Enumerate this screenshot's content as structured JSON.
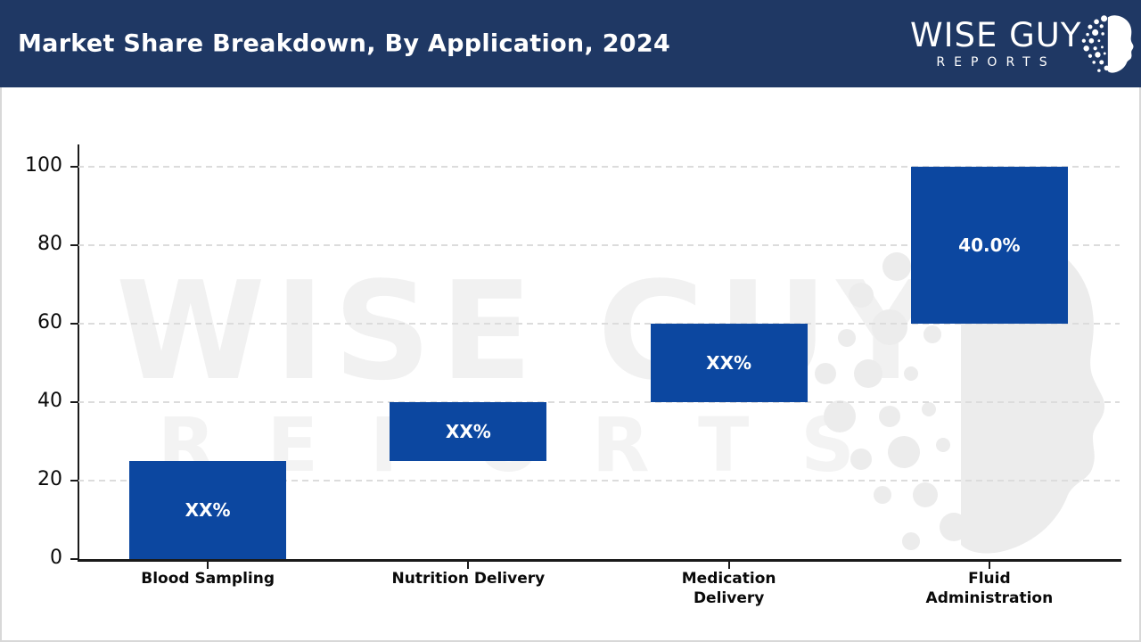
{
  "brand": {
    "name_top": "WISE GUY",
    "name_bottom": "REPORTS"
  },
  "header": {
    "bg_color": "#1f3864"
  },
  "chart_data": {
    "type": "bar",
    "subtype": "waterfall",
    "title": "Market Share Breakdown, By Application, 2024",
    "categories": [
      "Blood Sampling",
      "Nutrition Delivery",
      "Medication\nDelivery",
      "Fluid\nAdministration"
    ],
    "series": [
      {
        "name": "Market share (%)",
        "starts": [
          0,
          25,
          40,
          60
        ],
        "ends": [
          25,
          40,
          60,
          100
        ],
        "bar_labels": [
          "XX%",
          "XX%",
          "XX%",
          "40.0%"
        ]
      }
    ],
    "ylim": [
      0,
      100
    ],
    "yticks": [
      0,
      20,
      40,
      60,
      80,
      100
    ],
    "xlabel": "",
    "ylabel": "",
    "grid": "horizontal-dashed",
    "legend": false,
    "bar_color": "#0c47a0",
    "bar_label_color": "#ffffff",
    "axis_color": "#1a1a1a",
    "gridline_color": "#dcdcdc",
    "watermark": {
      "line1": "WISE GUY",
      "line2": "REPORTS"
    }
  }
}
